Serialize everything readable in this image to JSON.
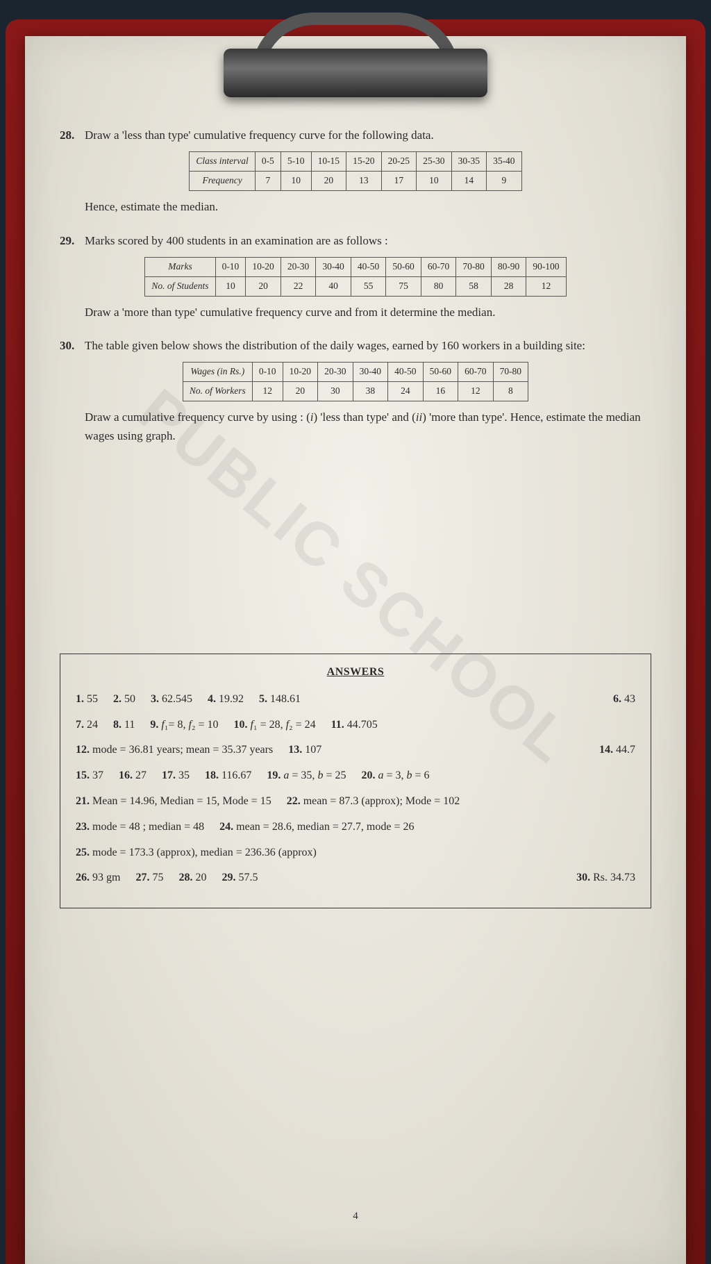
{
  "watermark": "PUBLIC SCHOOL",
  "page_number": "4",
  "questions": {
    "q28": {
      "num": "28.",
      "text": "Draw a 'less than type' cumulative frequency curve for the following data.",
      "follow": "Hence, estimate the median.",
      "table": {
        "row1_label": "Class interval",
        "row1": [
          "0-5",
          "5-10",
          "10-15",
          "15-20",
          "20-25",
          "25-30",
          "30-35",
          "35-40"
        ],
        "row2_label": "Frequency",
        "row2": [
          "7",
          "10",
          "20",
          "13",
          "17",
          "10",
          "14",
          "9"
        ]
      }
    },
    "q29": {
      "num": "29.",
      "text": "Marks scored by 400 students in an examination are as follows :",
      "follow": "Draw a 'more than type' cumulative frequency curve and from it determine the median.",
      "table": {
        "row1_label": "Marks",
        "row1": [
          "0-10",
          "10-20",
          "20-30",
          "30-40",
          "40-50",
          "50-60",
          "60-70",
          "70-80",
          "80-90",
          "90-100"
        ],
        "row2_label": "No. of Students",
        "row2": [
          "10",
          "20",
          "22",
          "40",
          "55",
          "75",
          "80",
          "58",
          "28",
          "12"
        ]
      }
    },
    "q30": {
      "num": "30.",
      "text": "The table given below shows the distribution of the daily wages, earned by 160 workers in a building site:",
      "follow": "Draw a cumulative frequency curve by using : (i) 'less than type' and (ii) 'more than type'. Hence, estimate the median wages using graph.",
      "table": {
        "row1_label": "Wages (in Rs.)",
        "row1": [
          "0-10",
          "10-20",
          "20-30",
          "30-40",
          "40-50",
          "50-60",
          "60-70",
          "70-80"
        ],
        "row2_label": "No. of Workers",
        "row2": [
          "12",
          "20",
          "30",
          "38",
          "24",
          "16",
          "12",
          "8"
        ]
      }
    }
  },
  "answers": {
    "title": "ANSWERS",
    "items": {
      "a1": "55",
      "a2": "50",
      "a3": "62.545",
      "a4": "19.92",
      "a5": "148.61",
      "a6": "43",
      "a7": "24",
      "a8": "11",
      "a9": "f₁= 8, f₂ = 10",
      "a10": "f₁ = 28, f₂ = 24",
      "a11": "44.705",
      "a12": "mode = 36.81 years; mean = 35.37 years",
      "a13": "107",
      "a14": "44.7",
      "a15": "37",
      "a16": "27",
      "a17": "35",
      "a18": "116.67",
      "a19": "a = 35, b = 25",
      "a20": "a = 3, b = 6",
      "a21": "Mean = 14.96, Median = 15, Mode = 15",
      "a22": "mean = 87.3 (approx); Mode = 102",
      "a23": "mode = 48 ; median = 48",
      "a24": "mean = 28.6, median = 27.7, mode = 26",
      "a25": "mode = 173.3 (approx), median = 236.36 (approx)",
      "a26": "93 gm",
      "a27": "75",
      "a28": "20",
      "a29": "57.5",
      "a30": "Rs. 34.73"
    }
  }
}
